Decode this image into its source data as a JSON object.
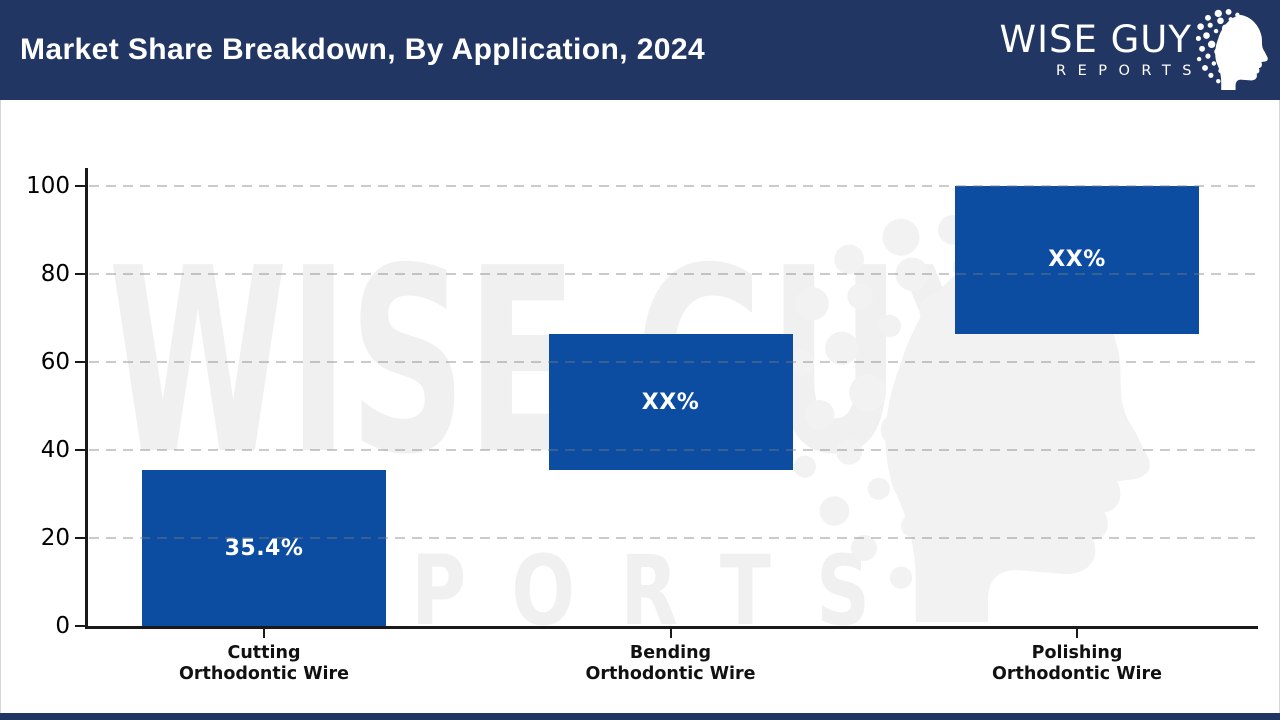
{
  "header": {
    "title": "Market Share Breakdown, By Application, 2024",
    "logo": {
      "wordmark": "WISE GUY",
      "subtext": "REPORTS"
    }
  },
  "watermark": {
    "wordmark": "WISE GUY",
    "subtext": "REPORTS"
  },
  "colors": {
    "header_bg": "#213663",
    "footer_bar": "#213663",
    "bar": "#0C4DA2",
    "bar_label": "#ffffff",
    "axis": "#1a1a1a",
    "tick_label": "#000000",
    "gridline_rgba": "rgba(125,125,125,0.4)",
    "watermark": "#f0f0f0"
  },
  "chart_data": {
    "type": "bar",
    "subtype": "floating-waterfall",
    "title": "Market Share Breakdown, By Application, 2024",
    "categories": [
      {
        "line1": "Cutting",
        "line2": "Orthodontic Wire"
      },
      {
        "line1": "Bending",
        "line2": "Orthodontic Wire"
      },
      {
        "line1": "Polishing",
        "line2": "Orthodontic Wire"
      }
    ],
    "segments": [
      {
        "from": 0,
        "to": 35.4,
        "label": "35.4%"
      },
      {
        "from": 35.4,
        "to": 66.4,
        "label": "XX%"
      },
      {
        "from": 66.4,
        "to": 100,
        "label": "XX%"
      }
    ],
    "ylim": [
      0,
      100
    ],
    "yticks": [
      0,
      20,
      40,
      60,
      80,
      100
    ],
    "grid": {
      "horizontal": true,
      "style": "dashed"
    },
    "legend": "none"
  }
}
